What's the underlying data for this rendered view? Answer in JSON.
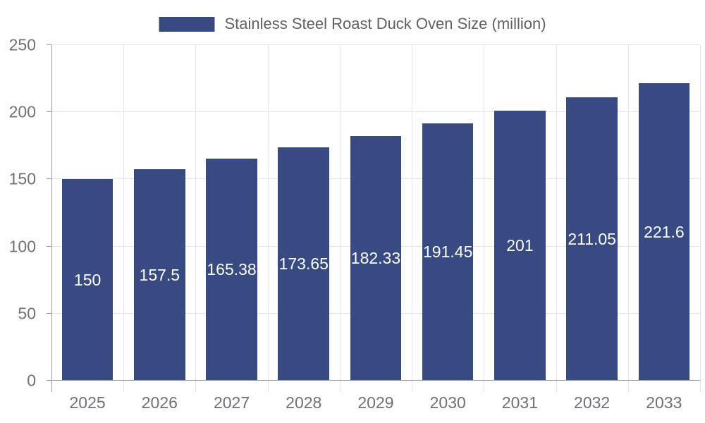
{
  "chart_data": {
    "type": "bar",
    "legend": "Stainless Steel Roast Duck Oven Size (million)",
    "categories": [
      "2025",
      "2026",
      "2027",
      "2028",
      "2029",
      "2030",
      "2031",
      "2032",
      "2033"
    ],
    "values": [
      150,
      157.5,
      165.38,
      173.65,
      182.33,
      191.45,
      201,
      211.05,
      221.6
    ],
    "value_labels": [
      "150",
      "157.5",
      "165.38",
      "173.65",
      "182.33",
      "191.45",
      "201",
      "211.05",
      "221.6"
    ],
    "xlabel": "",
    "ylabel": "",
    "ylim": [
      0,
      250
    ],
    "y_ticks": [
      0,
      50,
      100,
      150,
      200,
      250
    ],
    "grid": true,
    "legend_position": "top",
    "value_label_position": "inside-center",
    "colors": {
      "bar": "#374B82",
      "grid": "#e4e5e9",
      "axis": "#9a9a9a",
      "axis_label": "#707078",
      "legend_text": "#616161",
      "value_label": "#ffffff",
      "background": "#ffffff"
    }
  }
}
